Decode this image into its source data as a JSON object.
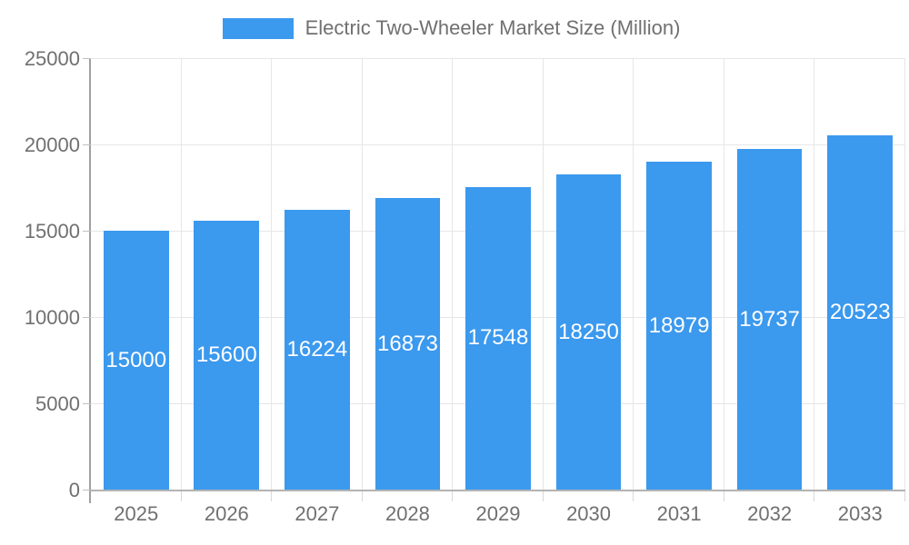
{
  "legend": {
    "label": "Electric Two-Wheeler Market Size (Million)"
  },
  "chart_data": {
    "type": "bar",
    "title": "Electric Two-Wheeler Market Size (Million)",
    "series_name": "Electric Two-Wheeler Market Size (Million)",
    "categories": [
      "2025",
      "2026",
      "2027",
      "2028",
      "2029",
      "2030",
      "2031",
      "2032",
      "2033"
    ],
    "values": [
      15000,
      15600,
      16224,
      16873,
      17548,
      18250,
      18979,
      19737,
      20523
    ],
    "xlabel": "",
    "ylabel": "",
    "ylim": [
      0,
      25000
    ],
    "yticks": [
      0,
      5000,
      10000,
      15000,
      20000,
      25000
    ],
    "grid": true,
    "legend_position": "top-center",
    "value_labels_position": "inside-center",
    "colors": {
      "bar": "#3b99ee",
      "axis_text": "#707070",
      "value_label": "#ffffff",
      "gridline": "#e6e6e6",
      "axis_line": "#a6a6a6"
    }
  }
}
